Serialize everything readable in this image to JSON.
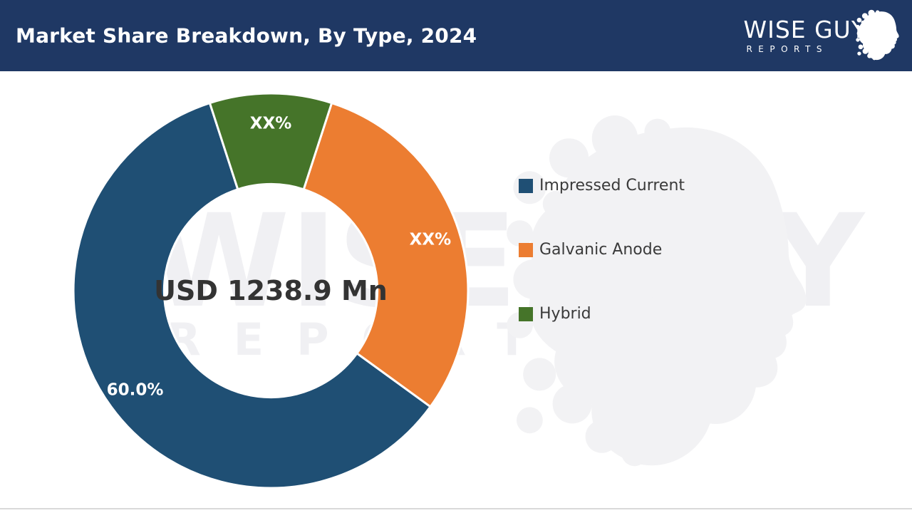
{
  "header": {
    "title": "Market Share Breakdown, By Type, 2024",
    "logo": {
      "line1": "WISE GUY",
      "line2": "REPORTS"
    }
  },
  "watermark": {
    "line1": "WISE GUY",
    "line2": "REPORTS"
  },
  "chart_data": {
    "type": "pie",
    "subtype": "donut",
    "title": "Market Share Breakdown, By Type, 2024",
    "center_label": "USD 1238.9 Mn",
    "categories": [
      "Impressed Current",
      "Galvanic Anode",
      "Hybrid"
    ],
    "values": [
      60.0,
      30.0,
      10.0
    ],
    "labels": [
      "60.0%",
      "XX%",
      "XX%"
    ],
    "colors": [
      "#1f4f74",
      "#ec7d31",
      "#457429"
    ],
    "start_angle": 108,
    "counterclockwise": true,
    "inner_radius_ratio": 0.54,
    "legend_position": "right",
    "label_colors": {
      "slice_labels": "#ffffff",
      "center_label": "#333333"
    }
  },
  "colors": {
    "header_background": "#1f3864",
    "header_text": "#ffffff",
    "watermark": "#f0f0f3",
    "legend_text": "#3a3a3a"
  }
}
